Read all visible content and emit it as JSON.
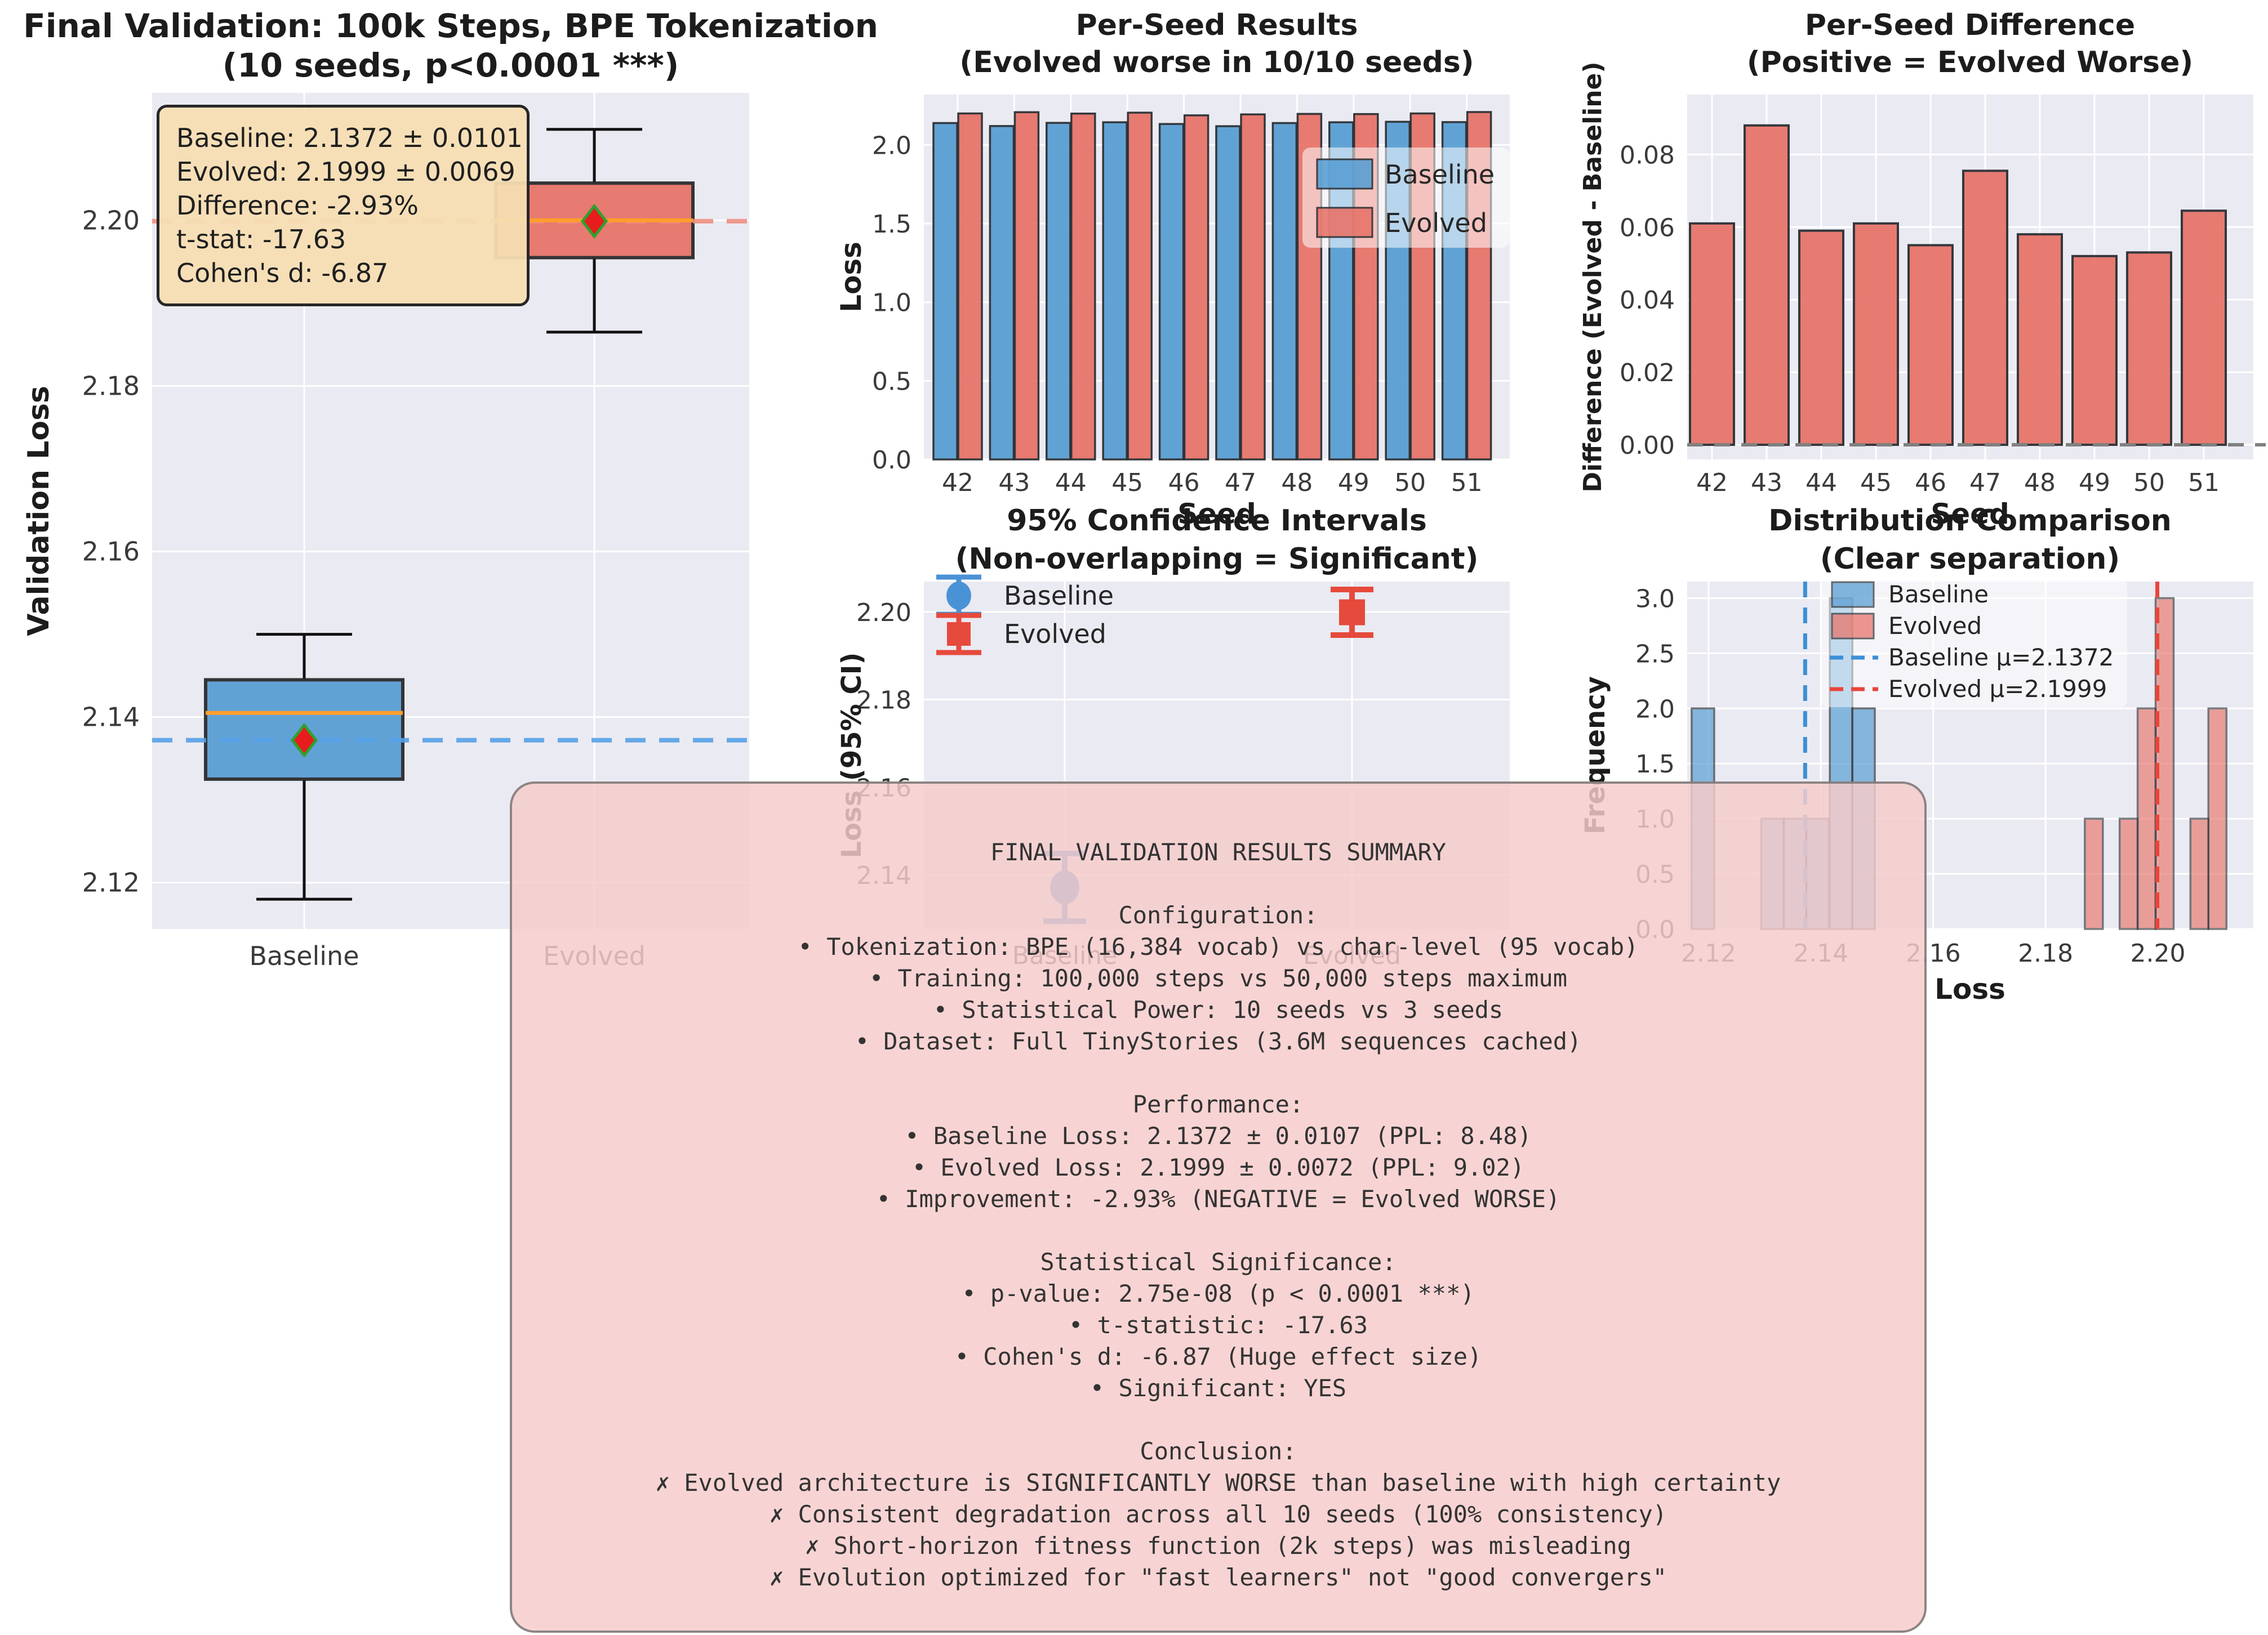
{
  "figure": {
    "axes_bg": "#eaeaf2",
    "grid_color": "#ffffff",
    "title_color": "#1c1c1c",
    "tick_color": "#3a3a3a"
  },
  "colors": {
    "baseline": "#5a9fd4",
    "evolved": "#e7756b",
    "baseline_mean_line": "#57a1e8",
    "evolved_mean_line": "#ef8f80",
    "baseline_mu_line": "#3d8fd6",
    "evolved_mu_line": "#e8453a",
    "ci_baseline": "#4a92d6",
    "ci_evolved": "#e64a3c",
    "median": "#ff9e2c",
    "mean_marker_fill": "#e81c1c",
    "mean_marker_edge": "#2fa02f",
    "diff_zero_line": "#808080",
    "axes_bg": "#eaeaf2"
  },
  "chart_data": [
    {
      "id": "validation-boxplot",
      "type": "box",
      "title": [
        "Final Validation: 100k Steps, BPE Tokenization",
        "(10 seeds, p<0.0001 ***)"
      ],
      "ylabel": "Validation Loss",
      "categories": [
        "Baseline",
        "Evolved"
      ],
      "ytick_labels": [
        "2.12",
        "2.14",
        "2.16",
        "2.18",
        "2.20"
      ],
      "ytick_values": [
        2.12,
        2.14,
        2.16,
        2.18,
        2.2
      ],
      "ylim": [
        2.1144,
        2.2154
      ],
      "boxes": [
        {
          "label": "Baseline",
          "color_key": "baseline",
          "whisker_low": 2.118,
          "q1": 2.1325,
          "median": 2.1405,
          "q3": 2.1445,
          "whisker_high": 2.15,
          "mean": 2.1372
        },
        {
          "label": "Evolved",
          "color_key": "evolved",
          "whisker_low": 2.1865,
          "q1": 2.1955,
          "median": 2.2,
          "q3": 2.2045,
          "whisker_high": 2.211,
          "mean": 2.1999
        }
      ],
      "mean_lines": [
        {
          "color_key": "baseline",
          "value": 2.1372
        },
        {
          "color_key": "evolved",
          "value": 2.1999
        }
      ],
      "annotation": [
        "Baseline: 2.1372 ± 0.0101",
        "Evolved: 2.1999 ± 0.0069",
        "Difference: -2.93%",
        "t-stat: -17.63",
        "Cohen's d: -6.87"
      ]
    },
    {
      "id": "per-seed-results",
      "type": "grouped_bar",
      "title": [
        "Per-Seed Results",
        "(Evolved worse in 10/10 seeds)"
      ],
      "xlabel": "Seed",
      "ylabel": "Loss",
      "categories": [
        "42",
        "43",
        "44",
        "45",
        "46",
        "47",
        "48",
        "49",
        "50",
        "51"
      ],
      "series": [
        {
          "name": "Baseline",
          "color_key": "baseline",
          "values": [
            2.139,
            2.12,
            2.14,
            2.144,
            2.133,
            2.119,
            2.139,
            2.144,
            2.147,
            2.145
          ]
        },
        {
          "name": "Evolved",
          "color_key": "evolved",
          "values": [
            2.2,
            2.208,
            2.199,
            2.205,
            2.188,
            2.194,
            2.197,
            2.196,
            2.2,
            2.209
          ]
        }
      ],
      "ytick_labels": [
        "0.0",
        "0.5",
        "1.0",
        "1.5",
        "2.0"
      ],
      "ytick_values": [
        0,
        0.5,
        1.0,
        1.5,
        2.0
      ],
      "ylim": [
        0,
        2.32
      ],
      "legend_loc": "upper right"
    },
    {
      "id": "per-seed-difference",
      "type": "bar",
      "title": [
        "Per-Seed Difference",
        "(Positive = Evolved Worse)"
      ],
      "xlabel": "Seed",
      "ylabel": "Difference (Evolved - Baseline)",
      "categories": [
        "42",
        "43",
        "44",
        "45",
        "46",
        "47",
        "48",
        "49",
        "50",
        "51"
      ],
      "values": [
        0.061,
        0.088,
        0.059,
        0.061,
        0.055,
        0.0755,
        0.058,
        0.052,
        0.053,
        0.0645
      ],
      "ytick_labels": [
        "0.00",
        "0.02",
        "0.04",
        "0.06",
        "0.08"
      ],
      "ytick_values": [
        0,
        0.02,
        0.04,
        0.06,
        0.08
      ],
      "ylim": [
        -0.00403,
        0.0965
      ],
      "zero_line": 0
    },
    {
      "id": "confidence-intervals",
      "type": "errorbar",
      "title": [
        "95% Confidence Intervals",
        "(Non-overlapping = Significant)"
      ],
      "ylabel": "Loss (95% CI)",
      "categories": [
        "Baseline",
        "Evolved"
      ],
      "points": [
        {
          "label": "Baseline",
          "color_key": "ci_baseline",
          "marker": "circle",
          "mean": 2.1372,
          "ci_low": 2.1295,
          "ci_high": 2.1449
        },
        {
          "label": "Evolved",
          "color_key": "ci_evolved",
          "marker": "square",
          "mean": 2.1999,
          "ci_low": 2.1947,
          "ci_high": 2.2051
        }
      ],
      "ytick_labels": [
        "2.14",
        "2.16",
        "2.18",
        "2.20"
      ],
      "ytick_values": [
        2.14,
        2.16,
        2.18,
        2.2
      ],
      "ylim": [
        2.1277,
        2.2069
      ],
      "legend_loc": "upper left"
    },
    {
      "id": "distribution-comparison",
      "type": "histogram",
      "title": [
        "Distribution Comparison",
        "(Clear separation)"
      ],
      "xlabel": "Loss",
      "ylabel": "Frequency",
      "series": [
        {
          "name": "Baseline",
          "color_key": "baseline",
          "bars": [
            [
              2.117,
              2.121,
              2
            ],
            [
              2.1294,
              2.1334,
              1
            ],
            [
              2.1334,
              2.1374,
              1
            ],
            [
              2.1374,
              2.1414,
              1
            ],
            [
              2.1416,
              2.1456,
              3
            ],
            [
              2.1456,
              2.1496,
              2
            ]
          ]
        },
        {
          "name": "Evolved",
          "color_key": "evolved",
          "bars": [
            [
              2.187,
              2.1902,
              1
            ],
            [
              2.1932,
              2.1964,
              1
            ],
            [
              2.1964,
              2.1996,
              2
            ],
            [
              2.1996,
              2.2028,
              3
            ],
            [
              2.2058,
              2.209,
              1
            ],
            [
              2.209,
              2.2122,
              2
            ]
          ]
        }
      ],
      "mean_lines": [
        {
          "label": "Baseline μ=2.1372",
          "color_key": "baseline_mu_line",
          "value": 2.1372
        },
        {
          "label": "Evolved μ=2.1999",
          "color_key": "evolved_mu_line",
          "value": 2.1999
        }
      ],
      "xtick_labels": [
        "2.12",
        "2.14",
        "2.16",
        "2.18",
        "2.20"
      ],
      "xtick_values": [
        2.12,
        2.14,
        2.16,
        2.18,
        2.2
      ],
      "xlim": [
        2.1162,
        2.217
      ],
      "ytick_labels": [
        "0.0",
        "0.5",
        "1.0",
        "1.5",
        "2.0",
        "2.5",
        "3.0"
      ],
      "ytick_values": [
        0,
        0.5,
        1.0,
        1.5,
        2.0,
        2.5,
        3.0
      ],
      "ylim": [
        0,
        3.15
      ],
      "legend_loc": "upper right"
    }
  ],
  "summary_box": {
    "lines": [
      "FINAL VALIDATION RESULTS SUMMARY",
      "",
      "Configuration:",
      "• Tokenization: BPE (16,384 vocab) vs char-level (95 vocab)",
      "• Training: 100,000 steps vs 50,000 steps maximum",
      "• Statistical Power: 10 seeds vs 3 seeds",
      "• Dataset: Full TinyStories (3.6M sequences cached)",
      "",
      "Performance:",
      "• Baseline Loss: 2.1372 ± 0.0107 (PPL: 8.48)",
      "• Evolved Loss: 2.1999 ± 0.0072 (PPL: 9.02)",
      "• Improvement: -2.93% (NEGATIVE = Evolved WORSE)",
      "",
      "Statistical Significance:",
      "• p-value: 2.75e-08 (p < 0.0001 ***)",
      "• t-statistic: -17.63",
      "• Cohen's d: -6.87 (Huge effect size)",
      "• Significant: YES",
      "",
      "Conclusion:",
      "✗ Evolved architecture is SIGNIFICANTLY WORSE than baseline with high certainty",
      "✗ Consistent degradation across all 10 seeds (100% consistency)",
      "✗ Short-horizon fitness function (2k steps) was misleading",
      "✗ Evolution optimized for \"fast learners\" not \"good convergers\""
    ]
  }
}
